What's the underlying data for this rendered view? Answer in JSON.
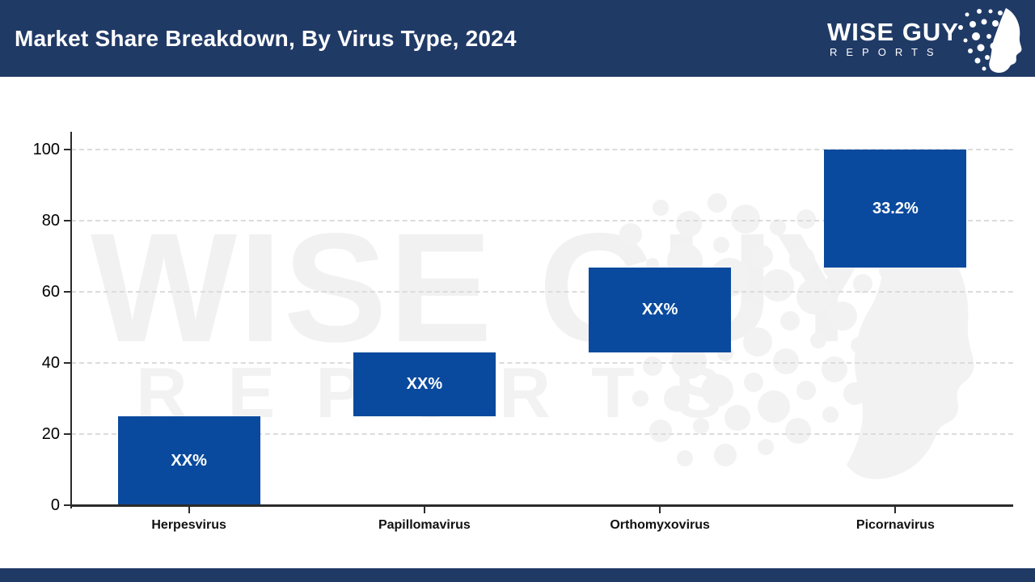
{
  "header": {
    "title": "Market Share Breakdown, By Virus Type, 2024",
    "logo": {
      "line1": "WISE GUY",
      "line2": "REPORTS"
    }
  },
  "watermark": {
    "line1": "WISE GUY",
    "line2": "REPORTS"
  },
  "chart_data": {
    "type": "bar",
    "variant": "floating-waterfall",
    "title": "Market Share Breakdown, By Virus Type, 2024",
    "categories": [
      "Herpesvirus",
      "Papillomavirus",
      "Orthomyxovirus",
      "Picornavirus"
    ],
    "segments": [
      {
        "category": "Herpesvirus",
        "start": 0,
        "end": 25,
        "height_pct": 25,
        "label": "XX%"
      },
      {
        "category": "Papillomavirus",
        "start": 25,
        "end": 43,
        "height_pct": 18,
        "label": "XX%"
      },
      {
        "category": "Orthomyxovirus",
        "start": 43,
        "end": 66.8,
        "height_pct": 23.8,
        "label": "XX%"
      },
      {
        "category": "Picornavirus",
        "start": 66.8,
        "end": 100,
        "height_pct": 33.2,
        "label": "33.2%"
      }
    ],
    "yticks": [
      0,
      20,
      40,
      60,
      80,
      100
    ],
    "ylim": [
      0,
      105
    ],
    "xlabel": "",
    "ylabel": "",
    "grid": "horizontal-dashed",
    "legend": "none",
    "bar_color": "#0a4a9e"
  },
  "colors": {
    "header_bg": "#203a66",
    "footer_bg": "#203a66",
    "bar": "#0a4a9e",
    "grid": "#dcdcdc",
    "axis": "#2b2b2b",
    "watermark": "#f1f1f2",
    "bar_label_text": "#ffffff",
    "title_text": "#ffffff"
  }
}
